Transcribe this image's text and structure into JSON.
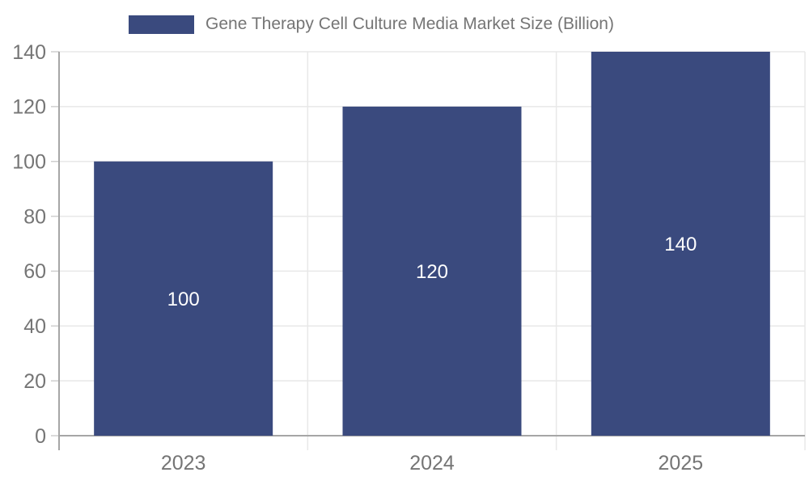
{
  "legend": {
    "swatch_color": "#3A4A7E"
  },
  "chart_data": {
    "type": "bar",
    "title": "Gene Therapy Cell Culture Media Market Size (Billion)",
    "categories": [
      "2023",
      "2024",
      "2025"
    ],
    "values": [
      100,
      120,
      140
    ],
    "xlabel": "",
    "ylabel": "",
    "ylim": [
      0,
      140
    ],
    "yticks": [
      0,
      20,
      40,
      60,
      80,
      100,
      120,
      140
    ],
    "grid": true,
    "legend_position": "top-center",
    "bar_color": "#3A4A7E",
    "bar_label_color": "#FFFFFF",
    "axis_color": "#A6A6A6",
    "grid_color": "#E8E8E8",
    "tick_color": "#CFCFCF",
    "tick_label_color": "#757575"
  }
}
